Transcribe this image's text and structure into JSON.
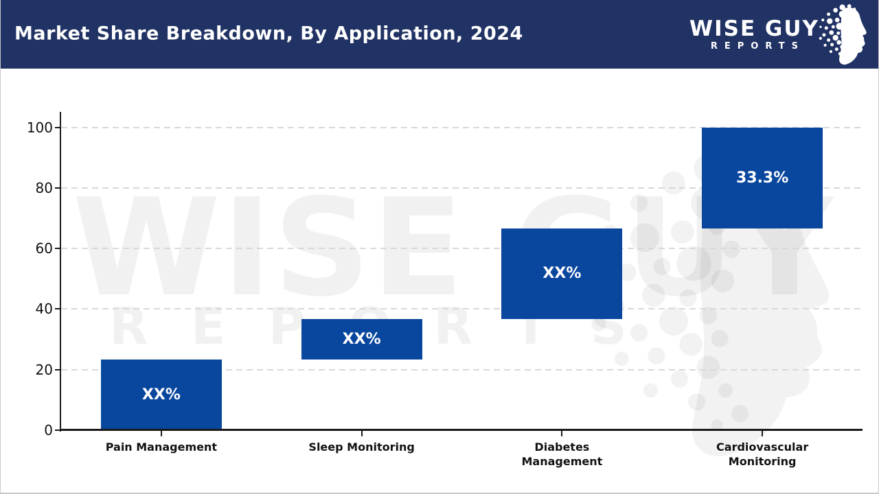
{
  "header": {
    "title": "Market Share Breakdown, By Application, 2024",
    "logo": {
      "line1": "WISE GUY",
      "line2": "REPORTS"
    }
  },
  "watermark": {
    "line1": "WISE GUY",
    "line2": "REPORTS"
  },
  "colors": {
    "header_bg": "#213364",
    "bar": "#09479e",
    "grid": "#d8d8d8",
    "axis": "#1a1a1a",
    "title_text": "#ffffff",
    "bar_label_text": "#ffffff"
  },
  "chart_data": {
    "type": "bar",
    "subtype": "waterfall",
    "title": "Market Share Breakdown, By Application, 2024",
    "categories": [
      "Pain Management",
      "Sleep Monitoring",
      "Diabetes Management",
      "Cardiovascular Monitoring"
    ],
    "category_lines": [
      [
        "Pain Management"
      ],
      [
        "Sleep Monitoring"
      ],
      [
        "Diabetes",
        "Management"
      ],
      [
        "Cardiovascular",
        "Monitoring"
      ]
    ],
    "segments": [
      {
        "category": "Pain Management",
        "start": 0,
        "end": 23.3,
        "label": "XX%"
      },
      {
        "category": "Sleep Monitoring",
        "start": 23.3,
        "end": 36.6,
        "label": "XX%"
      },
      {
        "category": "Diabetes Management",
        "start": 36.6,
        "end": 66.7,
        "label": "XX%"
      },
      {
        "category": "Cardiovascular Monitoring",
        "start": 66.7,
        "end": 100,
        "label": "33.3%"
      }
    ],
    "xlabel": "",
    "ylabel": "",
    "yticks": [
      0,
      20,
      40,
      60,
      80,
      100
    ],
    "ylim": [
      0,
      105
    ],
    "grid": true,
    "legend": false,
    "bar_color": "#09479e"
  }
}
